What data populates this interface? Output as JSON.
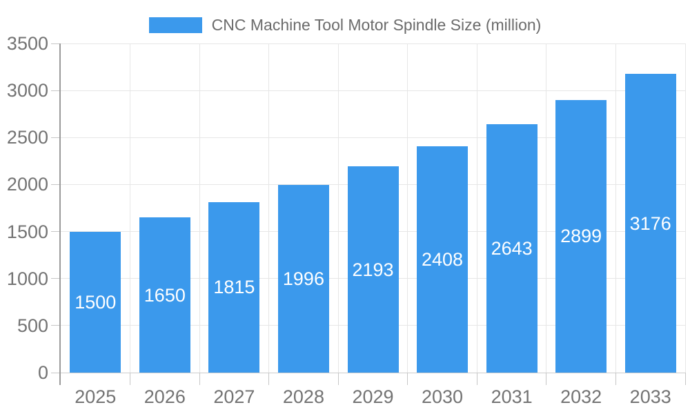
{
  "chart_data": {
    "type": "bar",
    "title": "CNC Machine Tool Motor Spindle Size (million)",
    "categories": [
      "2025",
      "2026",
      "2027",
      "2028",
      "2029",
      "2030",
      "2031",
      "2032",
      "2033"
    ],
    "values": [
      1500,
      1650,
      1815,
      1996,
      2193,
      2408,
      2643,
      2899,
      3176
    ],
    "xlabel": "",
    "ylabel": "",
    "ylim": [
      0,
      3500
    ],
    "ytick_step": 500,
    "ytick_labels": [
      "0",
      "500",
      "1000",
      "1500",
      "2000",
      "2500",
      "3000",
      "3500"
    ],
    "grid": true,
    "legend_position": "top-center",
    "bar_labels_inside": true,
    "colors": {
      "bar": "#3b99ec",
      "bar_label": "#ffffff",
      "grid_line": "#e6e6e6",
      "baseline": "#cccccc",
      "axis_line": "#9a9a9a",
      "tick_line": "#c6c6c6",
      "tick_label": "#737373",
      "legend_text": "#6b6b6b",
      "background": "#ffffff"
    }
  }
}
